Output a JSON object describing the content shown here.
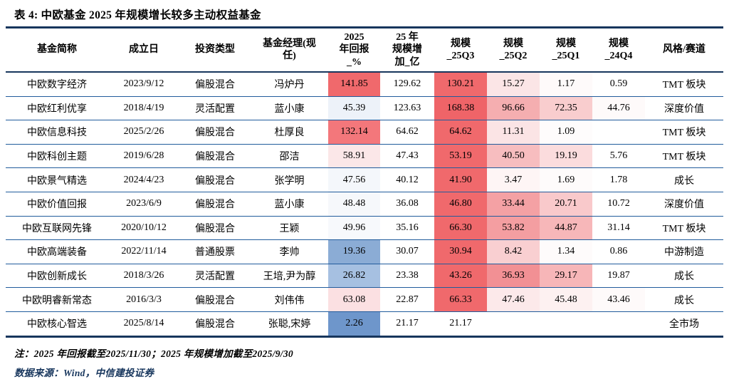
{
  "title": "表 4: 中欧基金 2025 年规模增长较多主动权益基金",
  "colors": {
    "heat_max_red": "#F0696C",
    "heat_min_blue": "#6E96CB",
    "border_dark": "#17365D",
    "border_light": "#215C9C"
  },
  "table": {
    "columns": [
      {
        "key": "name",
        "label": "基金简称"
      },
      {
        "key": "est_date",
        "label": "成立日"
      },
      {
        "key": "inv_type",
        "label": "投资类型"
      },
      {
        "key": "manager",
        "label": "基金经理(现\n任)"
      },
      {
        "key": "ret_2025",
        "label": "2025\n年回报\n_%"
      },
      {
        "key": "inc_25",
        "label": "25 年\n规模增\n加_亿"
      },
      {
        "key": "scale_25q3",
        "label": "规模\n_25Q3"
      },
      {
        "key": "scale_25q2",
        "label": "规模\n_25Q2"
      },
      {
        "key": "scale_25q1",
        "label": "规模\n_25Q1"
      },
      {
        "key": "scale_24q4",
        "label": "规模\n_24Q4"
      },
      {
        "key": "style",
        "label": "风格/赛道"
      }
    ],
    "rows": [
      [
        "中欧数字经济",
        "2023/9/12",
        "偏股混合",
        "冯炉丹",
        {
          "v": "141.85",
          "bg": "#F0696C"
        },
        "129.62",
        {
          "v": "130.21",
          "bg": "#F0696C"
        },
        {
          "v": "15.27",
          "bg": "#FBE5E6"
        },
        {
          "v": "1.17",
          "bg": "#FEFAFA"
        },
        "0.59",
        "TMT 板块"
      ],
      [
        "中欧红利优享",
        "2018/4/19",
        "灵活配置",
        "蓝小康",
        {
          "v": "45.39",
          "bg": "#EDF2F9"
        },
        "123.63",
        {
          "v": "168.38",
          "bg": "#EF6468"
        },
        {
          "v": "96.66",
          "bg": "#F5AEB0"
        },
        {
          "v": "72.35",
          "bg": "#F9CDCE"
        },
        {
          "v": "44.76",
          "bg": "#FEFAFA"
        },
        "深度价值"
      ],
      [
        "中欧信息科技",
        "2025/2/26",
        "偏股混合",
        "杜厚良",
        {
          "v": "132.14",
          "bg": "#F3777B"
        },
        "64.62",
        {
          "v": "64.62",
          "bg": "#F0696C"
        },
        {
          "v": "11.31",
          "bg": "#FBE4E5"
        },
        {
          "v": "1.09",
          "bg": "#FEFCFC"
        },
        "",
        "TMT 板块"
      ],
      [
        "中欧科创主题",
        "2019/6/28",
        "偏股混合",
        "邵洁",
        {
          "v": "58.91",
          "bg": "#FBE7E8"
        },
        "47.43",
        {
          "v": "53.19",
          "bg": "#F0696C"
        },
        {
          "v": "40.50",
          "bg": "#F7BDBF"
        },
        {
          "v": "19.19",
          "bg": "#FBDCDD"
        },
        "5.76",
        "TMT 板块"
      ],
      [
        "中欧景气精选",
        "2024/4/23",
        "偏股混合",
        "张学明",
        {
          "v": "47.56",
          "bg": "#F4F7FB"
        },
        "40.12",
        {
          "v": "41.90",
          "bg": "#F0696C"
        },
        {
          "v": "3.47",
          "bg": "#FEF5F5"
        },
        {
          "v": "1.69",
          "bg": "#FEFBFB"
        },
        "1.78",
        "成长"
      ],
      [
        "中欧价值回报",
        "2023/6/9",
        "偏股混合",
        "蓝小康",
        {
          "v": "48.48",
          "bg": "#F6F8FB"
        },
        "36.08",
        {
          "v": "46.80",
          "bg": "#F0696C"
        },
        {
          "v": "33.44",
          "bg": "#F4A1A4"
        },
        {
          "v": "20.71",
          "bg": "#F9C9CB"
        },
        "10.72",
        "深度价值"
      ],
      [
        "中欧互联网先锋",
        "2020/10/12",
        "偏股混合",
        "王颖",
        {
          "v": "49.96",
          "bg": "#F7F9FC"
        },
        "35.16",
        {
          "v": "66.30",
          "bg": "#F0696C"
        },
        {
          "v": "53.82",
          "bg": "#F49EA1"
        },
        {
          "v": "44.87",
          "bg": "#F7B7B9"
        },
        "31.14",
        "TMT 板块"
      ],
      [
        "中欧高端装备",
        "2022/11/14",
        "普通股票",
        "李帅",
        {
          "v": "19.36",
          "bg": "#8BACD5"
        },
        "30.07",
        {
          "v": "30.94",
          "bg": "#F0696C"
        },
        {
          "v": "8.42",
          "bg": "#F9CFD1"
        },
        {
          "v": "1.34",
          "bg": "#FEFBFB"
        },
        "0.86",
        "中游制造"
      ],
      [
        "中欧创新成长",
        "2018/3/26",
        "灵活配置",
        "王培,尹为醇",
        {
          "v": "26.82",
          "bg": "#A6C0E1"
        },
        "23.38",
        {
          "v": "43.26",
          "bg": "#F0696C"
        },
        {
          "v": "36.93",
          "bg": "#F29094"
        },
        {
          "v": "29.17",
          "bg": "#F7B6B8"
        },
        "19.87",
        "成长"
      ],
      [
        "中欧明睿新常态",
        "2016/3/3",
        "偏股混合",
        "刘伟伟",
        {
          "v": "63.08",
          "bg": "#FBE0E2"
        },
        "22.87",
        {
          "v": "66.33",
          "bg": "#F0696C"
        },
        {
          "v": "47.46",
          "bg": "#FCE9EA"
        },
        {
          "v": "45.48",
          "bg": "#FDF1F1"
        },
        {
          "v": "43.46",
          "bg": "#FEFAFA"
        },
        "成长"
      ],
      [
        "中欧核心智选",
        "2025/8/14",
        "偏股混合",
        "张聪,宋婷",
        {
          "v": "2.26",
          "bg": "#6E96CB"
        },
        "21.17",
        "21.17",
        "",
        "",
        "",
        "全市场"
      ]
    ]
  },
  "notes": {
    "note": "注：2025 年回报截至2025/11/30；2025 年规模增加截至2025/9/30",
    "source": "数据来源：Wind，中信建投证券"
  }
}
